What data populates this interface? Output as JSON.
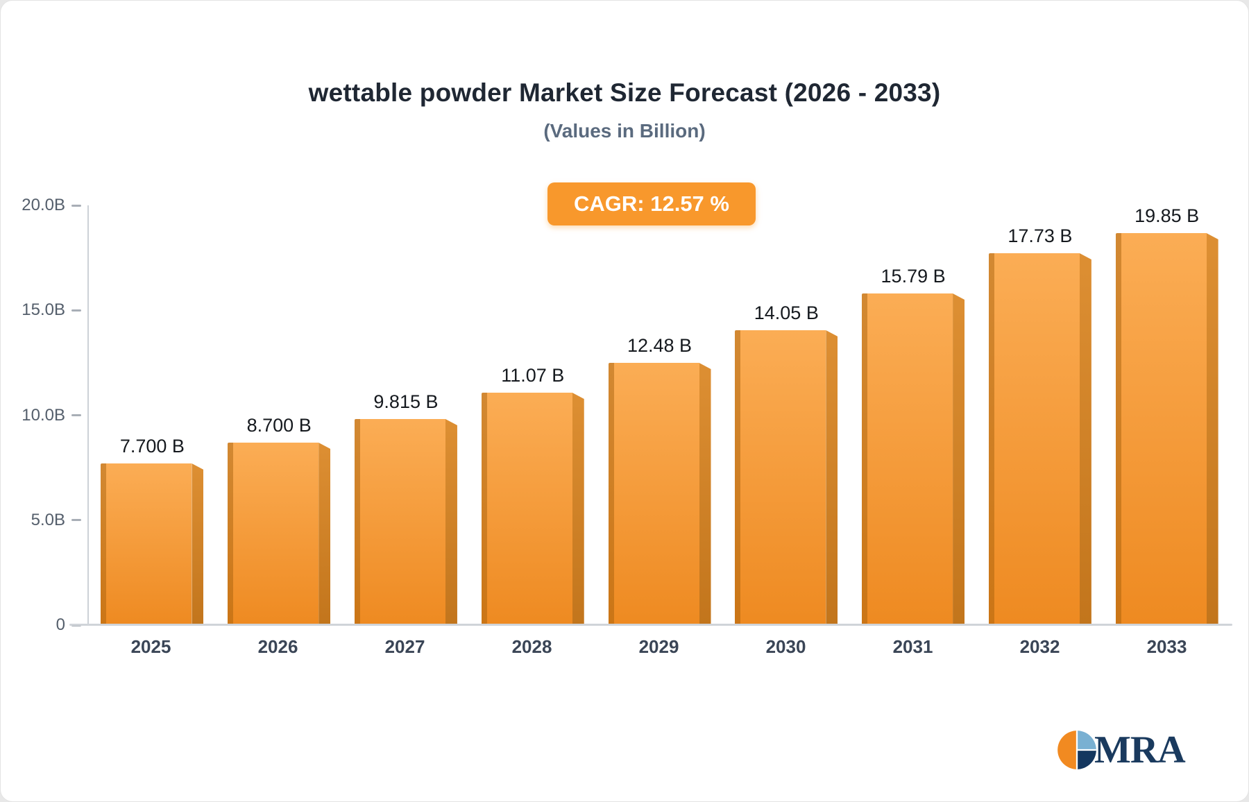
{
  "header": {
    "title": "wettable powder Market Size Forecast (2026 - 2033)",
    "subtitle": "(Values in Billion)"
  },
  "badge": {
    "label": "CAGR: 12.57 %"
  },
  "logo": {
    "text": "MRA",
    "icon": "pie-chart-logo-icon",
    "colors": {
      "orange": "#f18a21",
      "light_blue": "#79b0d2",
      "navy": "#14375f",
      "text": "#1a3a5e"
    }
  },
  "colors": {
    "badge": "#f8982c",
    "bar_top": "#fbad55",
    "bar_bottom": "#ee8a21",
    "bar_side": "#c2751c",
    "axis": "#ccd1d7",
    "title": "#1f2733",
    "subtitle": "#5a6a7e"
  },
  "chart_data": {
    "type": "bar",
    "title": "wettable powder Market Size Forecast (2026 - 2033)",
    "subtitle": "(Values in Billion)",
    "xlabel": "",
    "ylabel": "",
    "ylim": [
      0,
      20
    ],
    "grid": false,
    "legend": false,
    "categories": [
      "2025",
      "2026",
      "2027",
      "2028",
      "2029",
      "2030",
      "2031",
      "2032",
      "2033"
    ],
    "values": [
      7.7,
      8.7,
      9.815,
      11.07,
      12.48,
      14.05,
      15.79,
      17.73,
      19.85
    ],
    "value_labels": [
      "7.700 B",
      "8.700 B",
      "9.815 B",
      "11.07 B",
      "12.48 B",
      "14.05 B",
      "15.79 B",
      "17.73 B",
      "19.85 B"
    ],
    "yticks": [
      {
        "value": 0,
        "label": "0"
      },
      {
        "value": 5,
        "label": "5.0B"
      },
      {
        "value": 10,
        "label": "10.0B"
      },
      {
        "value": 15,
        "label": "15.0B"
      },
      {
        "value": 20,
        "label": "20.0B"
      }
    ],
    "annotation": "CAGR: 12.57 %"
  }
}
